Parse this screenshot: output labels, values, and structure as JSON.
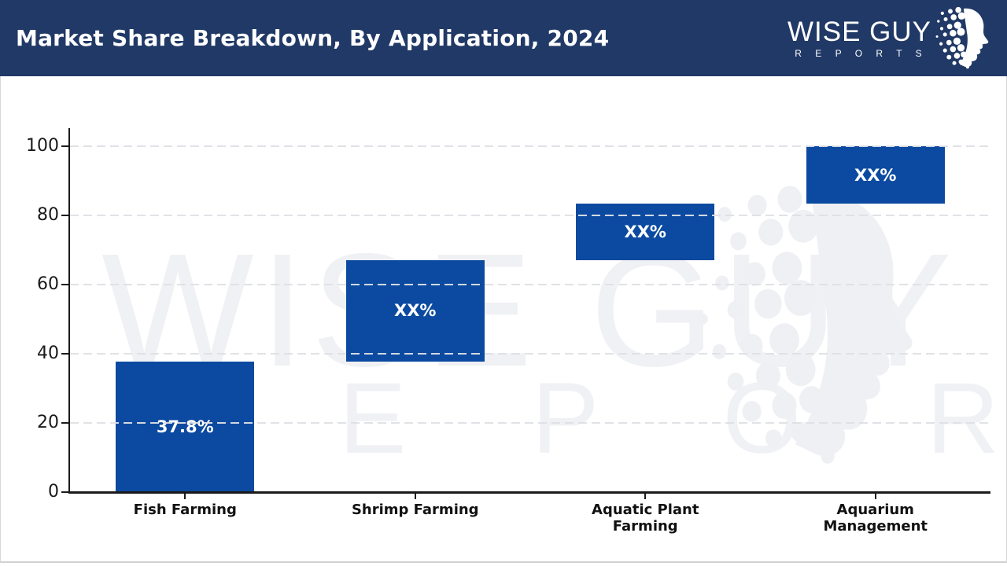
{
  "header": {
    "title": "Market Share Breakdown, By Application, 2024",
    "logo": {
      "name": "WISE GUY",
      "sub": "R E P O R T S"
    }
  },
  "watermark": {
    "name": "WISE GUY",
    "sub": "R E P O R T S"
  },
  "chart_data": {
    "type": "bar",
    "subtype": "waterfall",
    "title": "Market Share Breakdown, By Application, 2024",
    "categories": [
      "Fish Farming",
      "Shrimp Farming",
      "Aquatic Plant Farming",
      "Aquarium Management"
    ],
    "series": [
      {
        "name": "Market Share (%)",
        "segments": [
          {
            "category": "Fish Farming",
            "start": 0,
            "end": 37.8,
            "label": "37.8%"
          },
          {
            "category": "Shrimp Farming",
            "start": 37.8,
            "end": 67.0,
            "label": "XX%"
          },
          {
            "category": "Aquatic Plant Farming",
            "start": 67.0,
            "end": 83.4,
            "label": "XX%"
          },
          {
            "category": "Aquarium Management",
            "start": 83.4,
            "end": 100,
            "label": "XX%"
          }
        ]
      }
    ],
    "xlabel": "",
    "ylabel": "",
    "ylim": [
      0,
      100
    ],
    "yticks": [
      0,
      20,
      40,
      60,
      80,
      100
    ],
    "grid": "horizontal-dashed",
    "legend": "none",
    "bar_color": "#0b4aa0",
    "bar_label_color": "#ffffff",
    "axis_color": "#1a1a1a",
    "grid_color": "#dee0e5",
    "header_color": "#213966",
    "watermark_color": "#f0f1f4"
  }
}
